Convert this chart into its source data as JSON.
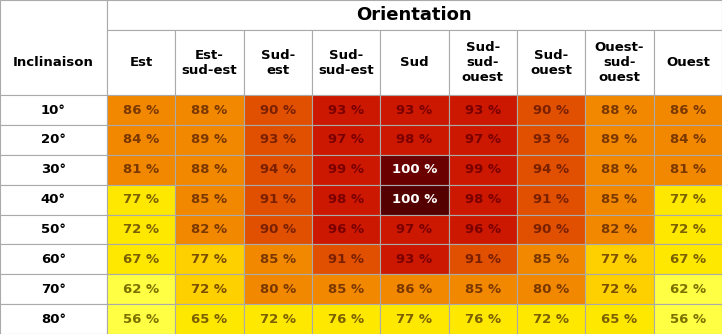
{
  "title": "Orientation",
  "row_header": "Inclinaison",
  "col_headers": [
    "Est",
    "Est-\nsud-est",
    "Sud-\nest",
    "Sud-\nsud-est",
    "Sud",
    "Sud-\nsud-\nouest",
    "Sud-\nouest",
    "Ouest-\nsud-\nouest",
    "Ouest"
  ],
  "row_labels": [
    "10°",
    "20°",
    "30°",
    "40°",
    "50°",
    "60°",
    "70°",
    "80°"
  ],
  "data": [
    [
      86,
      88,
      90,
      93,
      93,
      93,
      90,
      88,
      86
    ],
    [
      84,
      89,
      93,
      97,
      98,
      97,
      93,
      89,
      84
    ],
    [
      81,
      88,
      94,
      99,
      100,
      99,
      94,
      88,
      81
    ],
    [
      77,
      85,
      91,
      98,
      100,
      98,
      91,
      85,
      77
    ],
    [
      72,
      82,
      90,
      96,
      97,
      96,
      90,
      82,
      72
    ],
    [
      67,
      77,
      85,
      91,
      93,
      91,
      85,
      77,
      67
    ],
    [
      62,
      72,
      80,
      85,
      86,
      85,
      80,
      72,
      62
    ],
    [
      56,
      65,
      72,
      76,
      77,
      76,
      72,
      65,
      56
    ]
  ],
  "cell_colors": [
    [
      "#F28800",
      "#F28800",
      "#E05000",
      "#CC1800",
      "#CC1800",
      "#CC1800",
      "#E05000",
      "#F28800",
      "#F28800"
    ],
    [
      "#F28800",
      "#F28800",
      "#E05000",
      "#CC1800",
      "#CC1800",
      "#CC1800",
      "#E05000",
      "#F28800",
      "#F28800"
    ],
    [
      "#F28800",
      "#F28800",
      "#E05000",
      "#CC1800",
      "#6B0000",
      "#CC1800",
      "#E05000",
      "#F28800",
      "#F28800"
    ],
    [
      "#FFE800",
      "#F28800",
      "#E05000",
      "#CC1800",
      "#550000",
      "#CC1800",
      "#E05000",
      "#F28800",
      "#FFE800"
    ],
    [
      "#FFE800",
      "#F28800",
      "#E05000",
      "#CC1800",
      "#CC1800",
      "#CC1800",
      "#E05000",
      "#F28800",
      "#FFE800"
    ],
    [
      "#FFE800",
      "#FFD000",
      "#F28800",
      "#E05000",
      "#CC1800",
      "#E05000",
      "#F28800",
      "#FFD000",
      "#FFE800"
    ],
    [
      "#FFFF44",
      "#FFD000",
      "#F28800",
      "#F28800",
      "#F28800",
      "#F28800",
      "#F28800",
      "#FFD000",
      "#FFFF44"
    ],
    [
      "#FFFF44",
      "#FFE800",
      "#FFE800",
      "#FFE800",
      "#FFE800",
      "#FFE800",
      "#FFE800",
      "#FFE800",
      "#FFFF44"
    ]
  ],
  "text_colors": [
    [
      "#7A3800",
      "#7A3800",
      "#7A2000",
      "#7A0000",
      "#7A0000",
      "#7A0000",
      "#7A2000",
      "#7A3800",
      "#7A3800"
    ],
    [
      "#7A3800",
      "#7A3800",
      "#7A2000",
      "#7A0000",
      "#7A0000",
      "#7A0000",
      "#7A2000",
      "#7A3800",
      "#7A3800"
    ],
    [
      "#7A3800",
      "#7A3800",
      "#7A2000",
      "#7A0000",
      "#FFFFFF",
      "#7A0000",
      "#7A2000",
      "#7A3800",
      "#7A3800"
    ],
    [
      "#7A6000",
      "#7A3800",
      "#7A2000",
      "#7A0000",
      "#FFFFFF",
      "#7A0000",
      "#7A2000",
      "#7A3800",
      "#7A6000"
    ],
    [
      "#7A6000",
      "#7A3800",
      "#7A2000",
      "#7A0000",
      "#7A0000",
      "#7A0000",
      "#7A2000",
      "#7A3800",
      "#7A6000"
    ],
    [
      "#7A6000",
      "#7A5000",
      "#7A3800",
      "#7A2000",
      "#7A0000",
      "#7A2000",
      "#7A3800",
      "#7A5000",
      "#7A6000"
    ],
    [
      "#7A7000",
      "#7A5000",
      "#7A3800",
      "#7A3800",
      "#7A3800",
      "#7A3800",
      "#7A3800",
      "#7A5000",
      "#7A7000"
    ],
    [
      "#7A7000",
      "#7A6000",
      "#7A6000",
      "#7A6000",
      "#7A6000",
      "#7A6000",
      "#7A6000",
      "#7A6000",
      "#7A7000"
    ]
  ],
  "border_color": "#AAAAAA",
  "title_fontsize": 13,
  "cell_fontsize": 9.5,
  "header_fontsize": 9.5,
  "fig_width": 7.22,
  "fig_height": 3.34,
  "dpi": 100
}
